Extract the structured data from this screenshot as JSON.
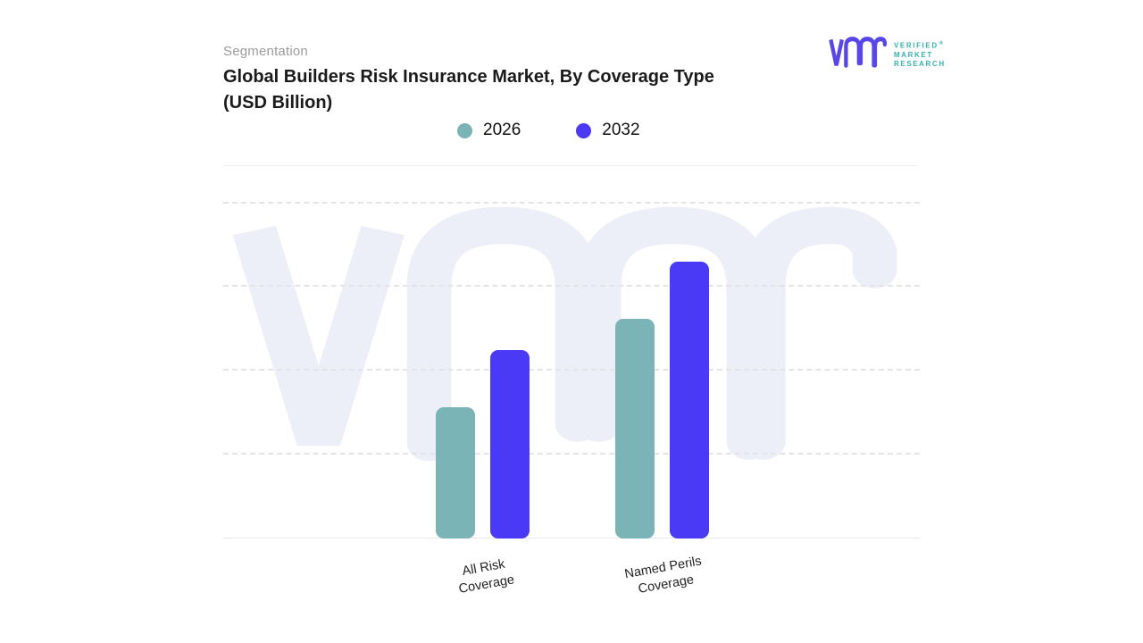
{
  "header": {
    "eyebrow": "Segmentation",
    "title": "Global Builders Risk Insurance Market, By Coverage Type (USD Billion)"
  },
  "logo": {
    "line1": "VERIFIED",
    "registered_mark": "®",
    "line2": "MARKET",
    "line3": "RESEARCH",
    "mark_color": "#5847e7",
    "text_color": "#35b2ae"
  },
  "legend": [
    {
      "label": "2026",
      "color": "#7ab4b6"
    },
    {
      "label": "2032",
      "color": "#4a39f5"
    }
  ],
  "watermark": {
    "name": "vmr-watermark",
    "color": "#edeff8"
  },
  "chart_data": {
    "type": "bar",
    "title": "Global Builders Risk Insurance Market, By Coverage Type (USD Billion)",
    "categories": [
      "All Risk Coverage",
      "Named Perils Coverage"
    ],
    "category_lines": [
      [
        "All Risk",
        "Coverage"
      ],
      [
        "Named Perils",
        "Coverage"
      ]
    ],
    "series": [
      {
        "name": "2026",
        "color": "#7ab4b6",
        "values": [
          1.57,
          2.62
        ]
      },
      {
        "name": "2032",
        "color": "#4a39f5",
        "values": [
          2.25,
          3.3
        ]
      }
    ],
    "xlabel": "",
    "ylabel": "",
    "ylim": [
      0,
      4.4
    ],
    "gridline_step": 1,
    "gridline_style": "dashed",
    "y_tick_labels_visible": false,
    "legend_position": "top"
  }
}
